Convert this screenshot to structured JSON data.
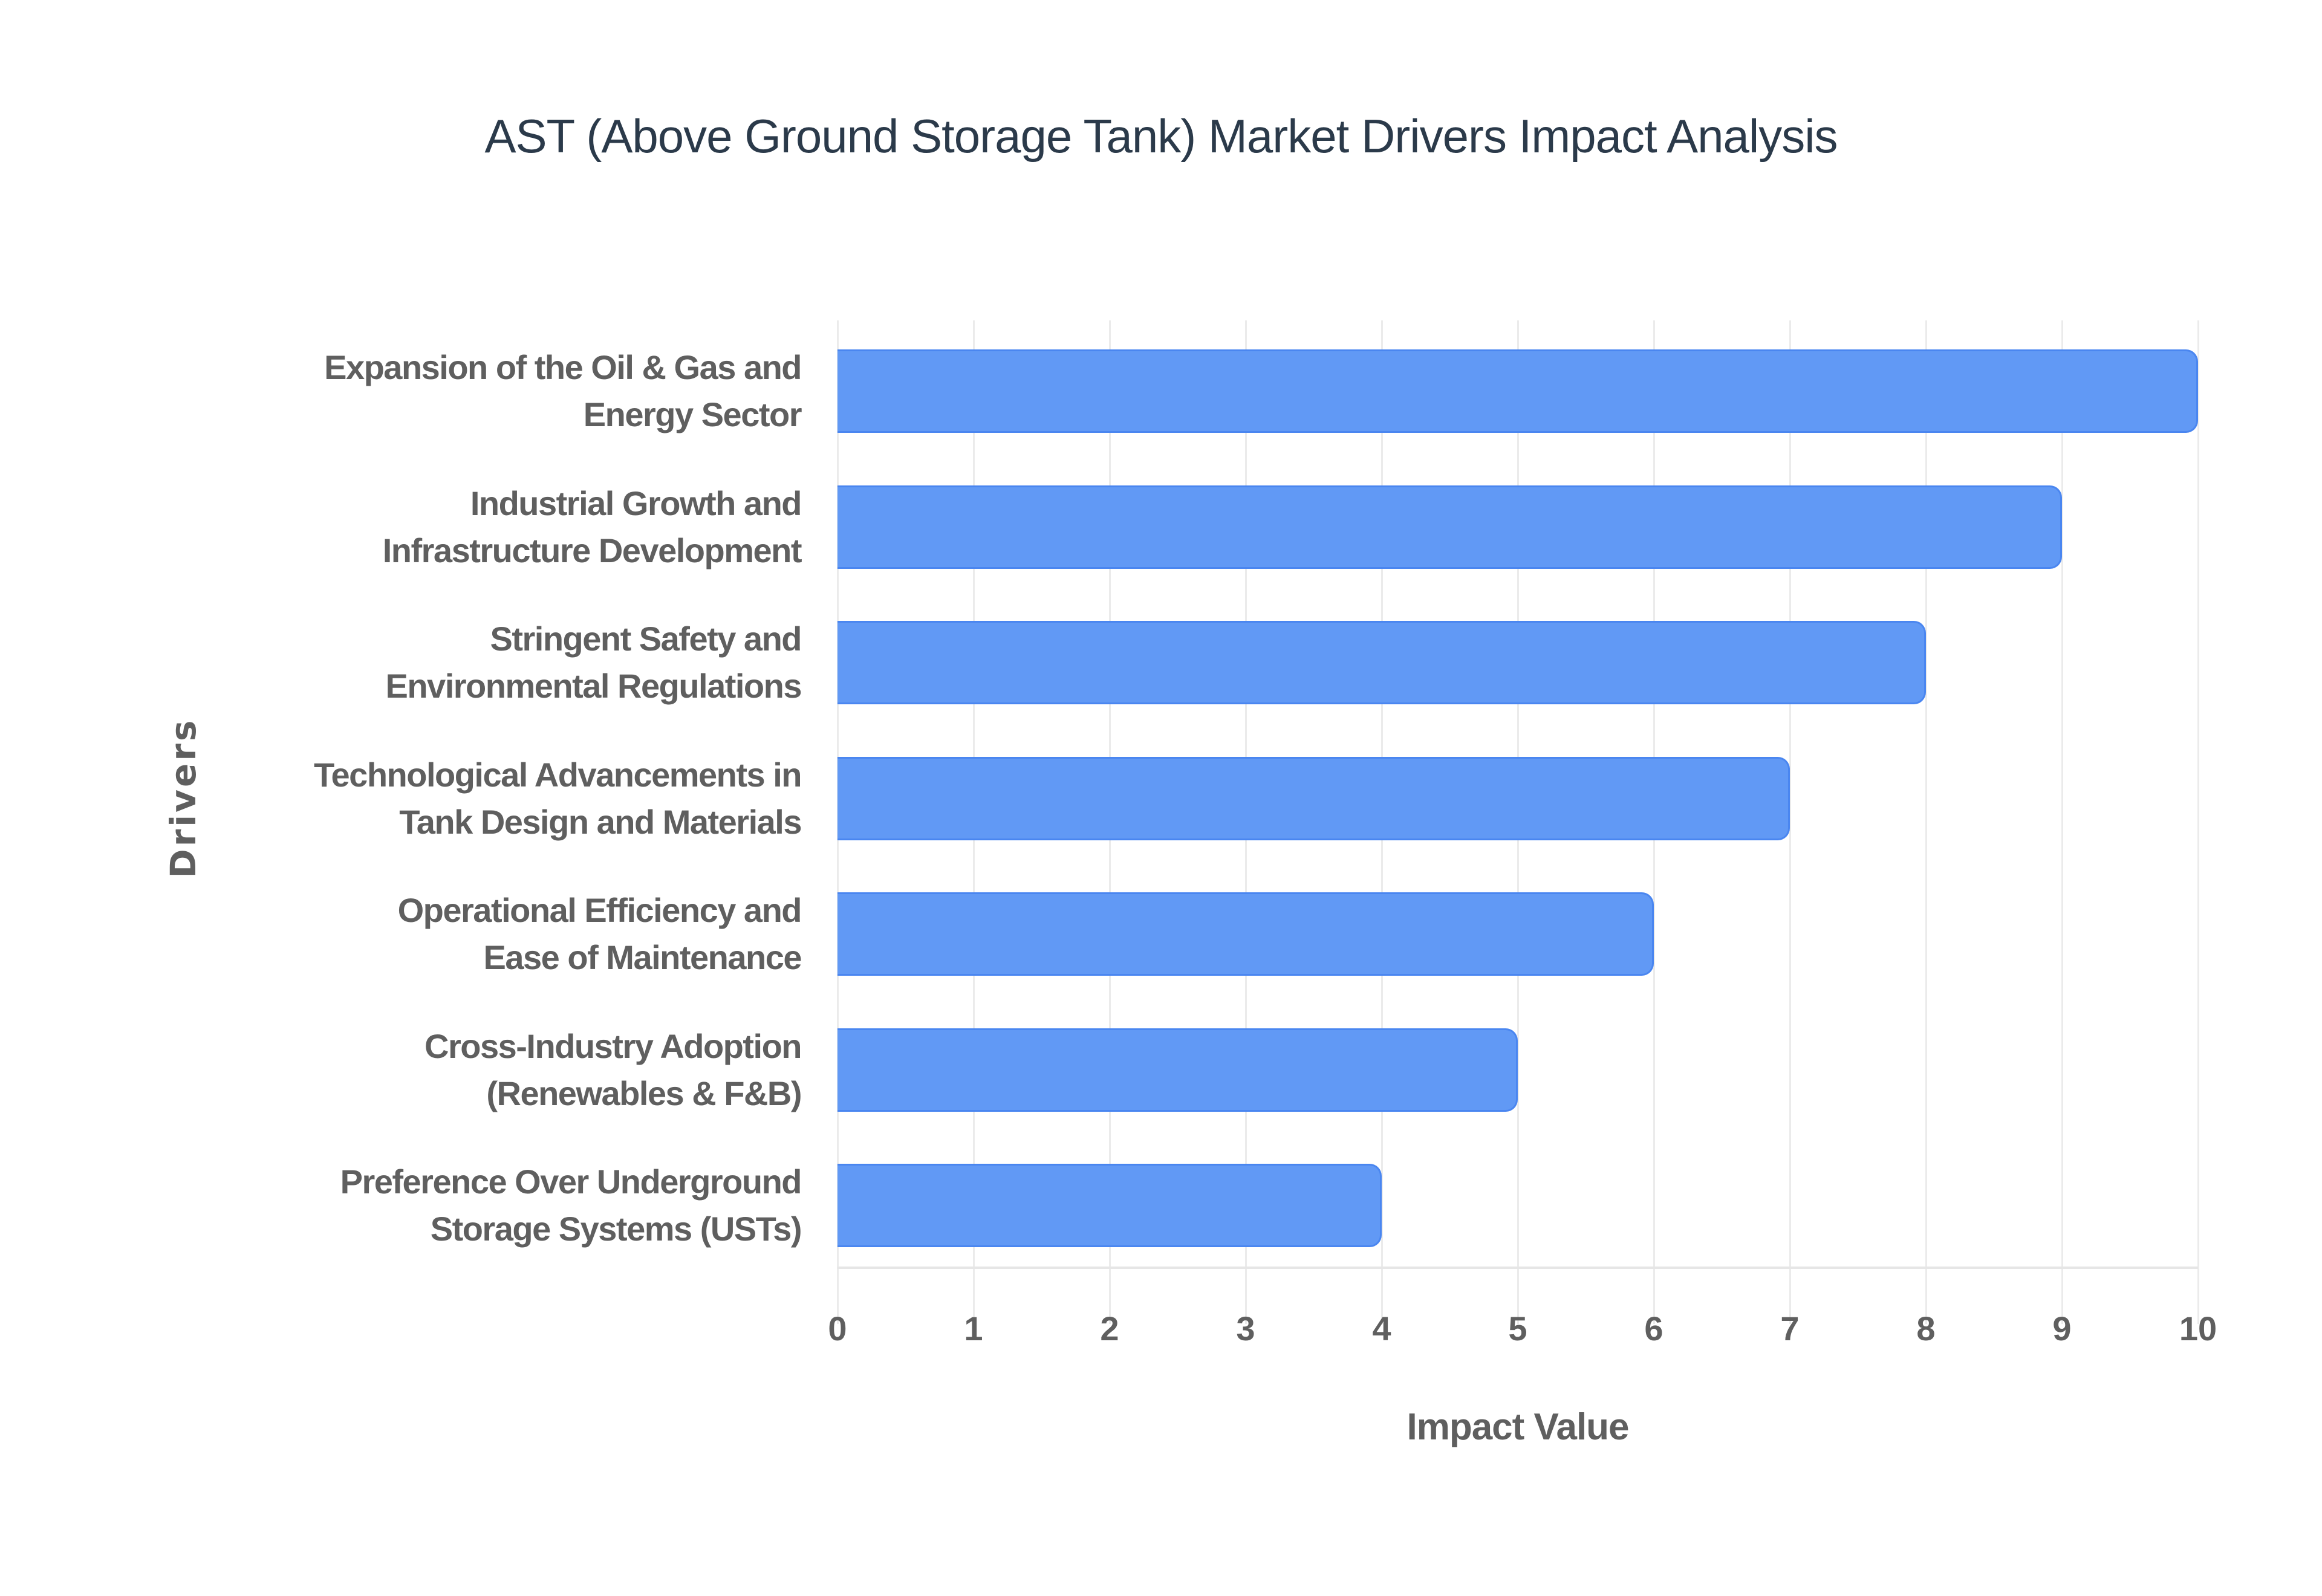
{
  "chart_data": {
    "type": "bar",
    "orientation": "horizontal",
    "title": "AST (Above Ground Storage Tank) Market Drivers Impact Analysis",
    "xlabel": "Impact Value",
    "ylabel": "Drivers",
    "xlim": [
      0,
      10
    ],
    "x_ticks": [
      "0",
      "1",
      "2",
      "3",
      "4",
      "5",
      "6",
      "7",
      "8",
      "9",
      "10"
    ],
    "grid": true,
    "legend": "none",
    "bar_color": "#6199f5",
    "categories": [
      [
        "Expansion of the Oil & Gas and",
        "Energy Sector"
      ],
      [
        "Industrial Growth and",
        "Infrastructure Development"
      ],
      [
        "Stringent Safety and",
        "Environmental Regulations"
      ],
      [
        "Technological Advancements in",
        "Tank Design and Materials"
      ],
      [
        "Operational Efficiency and",
        "Ease of Maintenance"
      ],
      [
        "Cross-Industry Adoption",
        "(Renewables & F&B)"
      ],
      [
        "Preference Over Underground",
        "Storage Systems (USTs)"
      ]
    ],
    "values": [
      10,
      9,
      8,
      7,
      6,
      5,
      4
    ]
  }
}
